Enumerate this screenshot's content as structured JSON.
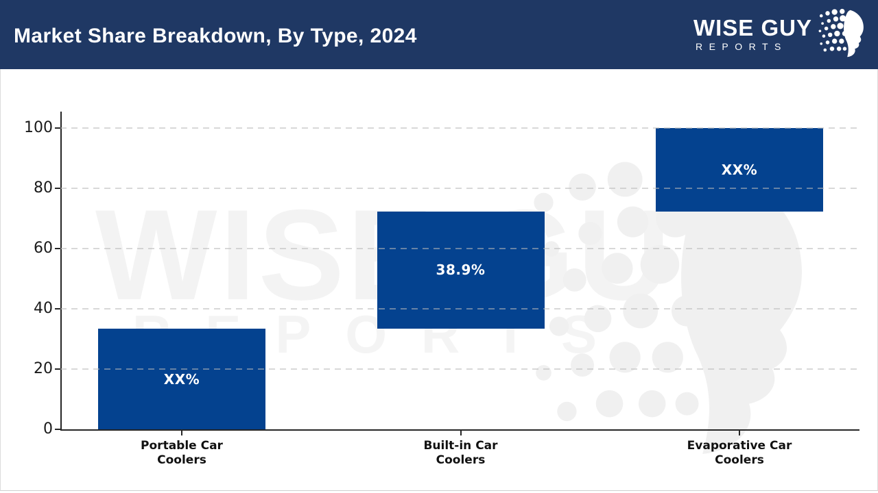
{
  "header": {
    "title": "Market Share Breakdown, By Type, 2024",
    "logo": {
      "line1": "WISE GUY",
      "line2": "REPORTS"
    }
  },
  "watermark": {
    "line1": "WISE GUY",
    "line2": "REPORTS"
  },
  "colors": {
    "header_bg": "#1F3864",
    "bar": "#04428F",
    "bar_label": "#FFFFFF",
    "axis": "#262626",
    "tick_label": "#1A1A1A",
    "gridline": "#D9D9D9",
    "watermark": "#F2F2F2",
    "title_text": "#FFFFFF"
  },
  "chart_data": {
    "type": "bar",
    "subtype": "floating-range-waterfall",
    "title": "Market Share Breakdown, By Type, 2024",
    "categories": [
      "Portable Car Coolers",
      "Built-in Car Coolers",
      "Evaporative Car Coolers"
    ],
    "categories_lines": [
      [
        "Portable Car",
        "Coolers"
      ],
      [
        "Built-in Car",
        "Coolers"
      ],
      [
        "Evaporative Car",
        "Coolers"
      ]
    ],
    "segments": [
      {
        "category": "Portable Car Coolers",
        "start": 0,
        "end": 33.4,
        "label": "XX%"
      },
      {
        "category": "Built-in Car Coolers",
        "start": 33.4,
        "end": 72.3,
        "label": "38.9%"
      },
      {
        "category": "Evaporative Car Coolers",
        "start": 72.3,
        "end": 100,
        "label": "XX%"
      }
    ],
    "yticks": [
      0,
      20,
      40,
      60,
      80,
      100
    ],
    "ylim": [
      0,
      105
    ],
    "xlabel": "",
    "ylabel": "",
    "legend": false,
    "grid": "horizontal-dashed",
    "grid_over_bars": true
  }
}
